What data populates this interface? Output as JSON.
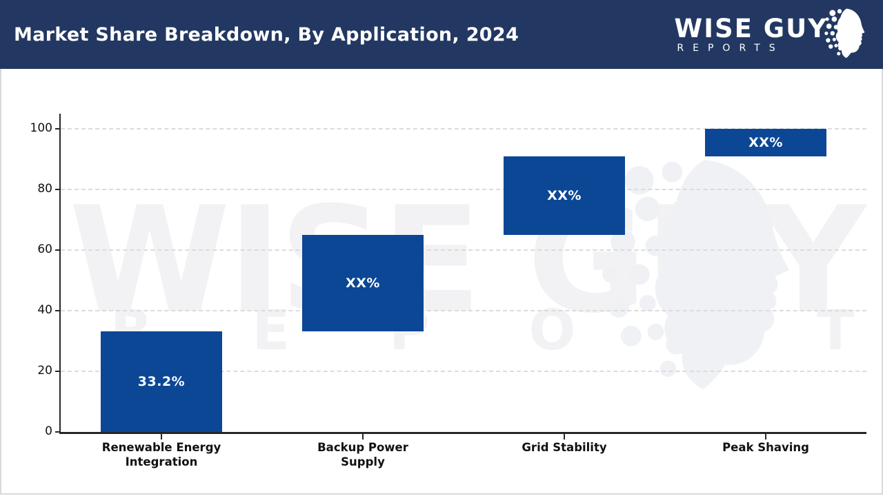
{
  "header": {
    "title": "Market Share Breakdown, By Application, 2024",
    "logo": {
      "line1": "WISE GUY",
      "line2": "REPORTS"
    }
  },
  "watermark": {
    "line1": "WISE GUY",
    "line2": "R E P O R T S"
  },
  "colors": {
    "header_bg": "#223862",
    "bar": "#0B4795",
    "bar_label": "#ffffff",
    "axis": "#262626",
    "gridline": "#DBDBDB",
    "watermark": "#F2F2F5"
  },
  "chart_data": {
    "type": "bar",
    "subtype": "waterfall",
    "title": "Market Share Breakdown, By Application, 2024",
    "xlabel": "",
    "ylabel": "",
    "ylim": [
      0,
      100
    ],
    "yticks": [
      0,
      20,
      40,
      60,
      80,
      100
    ],
    "grid": true,
    "legend": false,
    "categories": [
      "Renewable Energy\nIntegration",
      "Backup Power\nSupply",
      "Grid Stability",
      "Peak Shaving"
    ],
    "segments": [
      {
        "category": "Renewable Energy Integration",
        "start": 0,
        "end": 33.2,
        "label": "33.2%"
      },
      {
        "category": "Backup Power Supply",
        "start": 33.2,
        "end": 65,
        "label": "XX%"
      },
      {
        "category": "Grid Stability",
        "start": 65,
        "end": 91,
        "label": "XX%"
      },
      {
        "category": "Peak Shaving",
        "start": 91,
        "end": 100,
        "label": "XX%"
      }
    ]
  }
}
